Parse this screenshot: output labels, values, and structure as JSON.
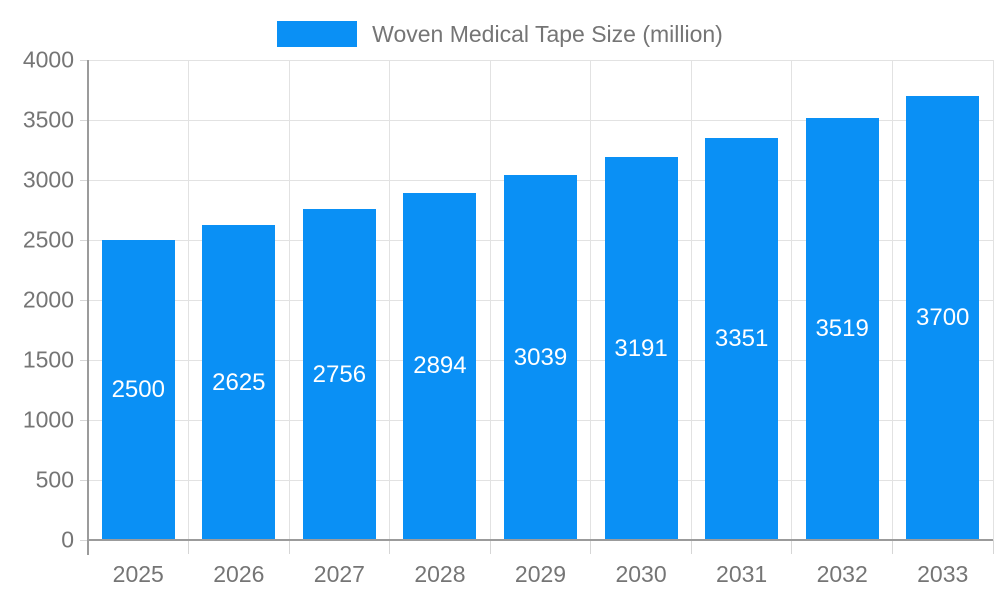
{
  "legend": {
    "label": "Woven Medical Tape Size (million)"
  },
  "chart_data": {
    "type": "bar",
    "title": "Woven Medical Tape Size (million)",
    "categories": [
      "2025",
      "2026",
      "2027",
      "2028",
      "2029",
      "2030",
      "2031",
      "2032",
      "2033"
    ],
    "values": [
      2500,
      2625,
      2756,
      2894,
      3039,
      3191,
      3351,
      3519,
      3700
    ],
    "xlabel": "",
    "ylabel": "",
    "ylim": [
      0,
      4000
    ],
    "ytick_step": 500,
    "grid": true,
    "legend_position": "top-center",
    "bar_labels": "inside-centered-white"
  },
  "colors": {
    "bar": "#0a90f5",
    "axis_text": "#757575",
    "bar_label_text": "#ffffff",
    "gridline": "#e2e2e2",
    "axis_line": "#9b9b9b",
    "background": "#ffffff"
  }
}
